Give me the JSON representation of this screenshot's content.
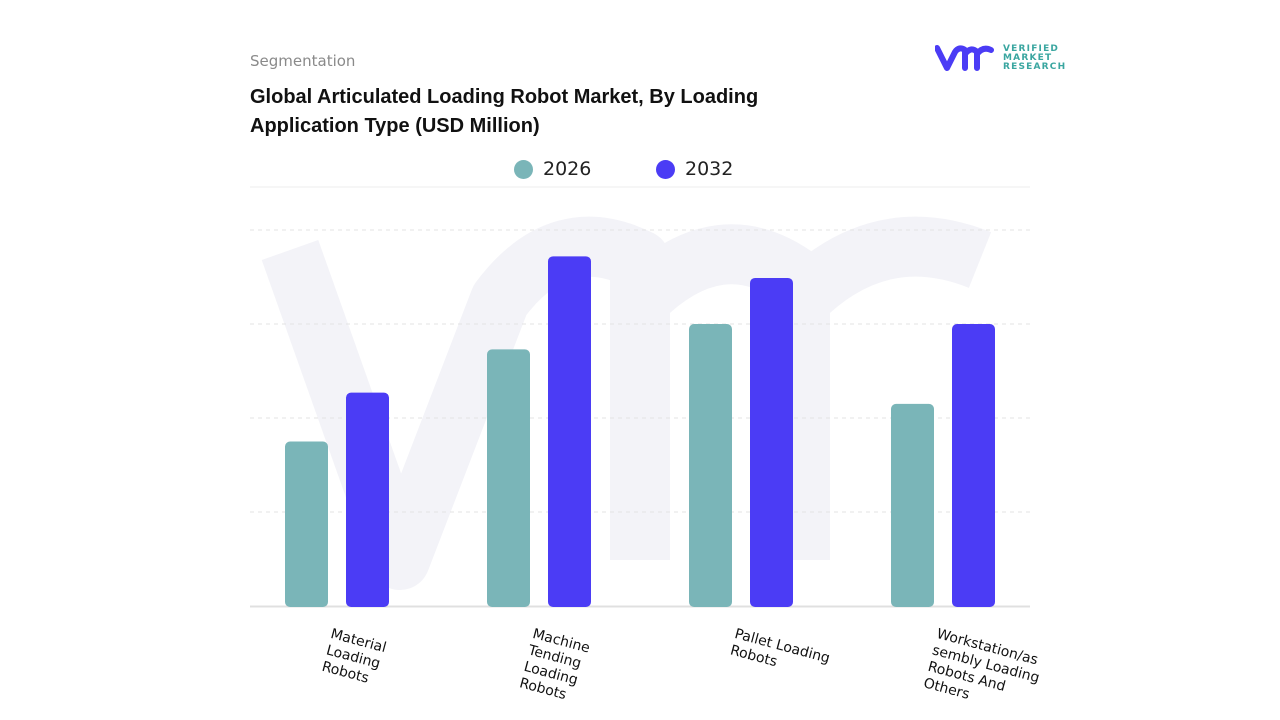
{
  "header": {
    "segment_label": "Segmentation",
    "title": "Global Articulated Loading Robot Market, By Loading Application Type (USD Million)"
  },
  "logo": {
    "mark": "vmr",
    "line1": "VERIFIED",
    "line2": "MARKET",
    "line3": "RESEARCH"
  },
  "colors": {
    "2026": "#7ab5b8",
    "2032": "#4b3cf5",
    "grid": "#e3e3e3"
  },
  "chart_data": {
    "type": "bar",
    "title": "Global Articulated Loading Robot Market, By Loading Application Type (USD Million)",
    "xlabel": "",
    "ylabel": "",
    "categories": [
      "Material Loading Robots",
      "Machine Tending Loading Robots",
      "Pallet Loading Robots",
      "Workstation/assembly Loading Robots And Others"
    ],
    "category_labels": [
      [
        "Material",
        "Loading",
        "Robots"
      ],
      [
        "Machine",
        "Tending",
        "Loading",
        "Robots"
      ],
      [
        "Pallet Loading",
        "Robots"
      ],
      [
        "Workstation/as",
        "sembly Loading",
        "Robots And",
        "Others"
      ]
    ],
    "series": [
      {
        "name": "2026",
        "values": [
          175,
          273,
          300,
          215
        ]
      },
      {
        "name": "2032",
        "values": [
          227,
          372,
          349,
          300
        ]
      }
    ],
    "ylim": [
      0,
      400
    ],
    "grid": true,
    "legend": "top-center"
  }
}
